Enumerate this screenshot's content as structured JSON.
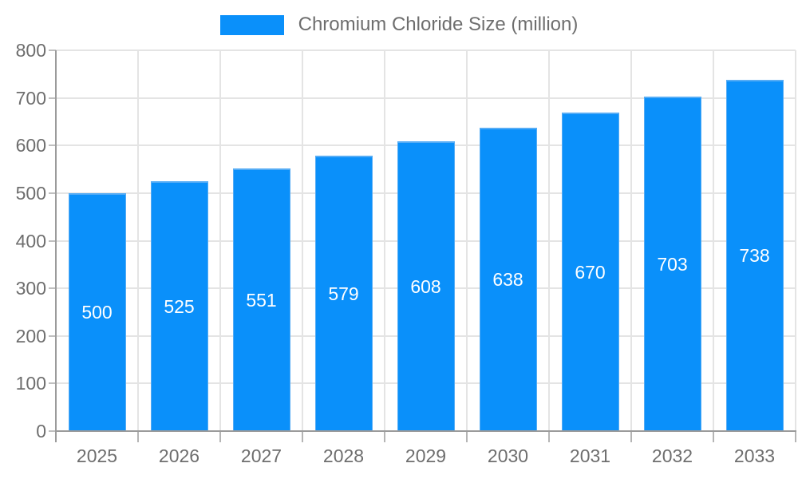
{
  "legend": {
    "label": "Chromium Chloride Size (million)"
  },
  "chart_data": {
    "type": "bar",
    "title": "Chromium Chloride Size (million)",
    "categories": [
      "2025",
      "2026",
      "2027",
      "2028",
      "2029",
      "2030",
      "2031",
      "2032",
      "2033"
    ],
    "values": [
      500,
      525,
      551,
      579,
      608,
      638,
      670,
      703,
      738
    ],
    "xlabel": "",
    "ylabel": "",
    "ylim": [
      0,
      800
    ],
    "ytick_step": 100,
    "grid": true,
    "legend_position": "top"
  },
  "colors": {
    "bar": "#0a90fa",
    "bar_border": "#55acf5",
    "axis": "#9b9b9b",
    "gridline": "#e4e4e4",
    "tick_text": "#6e6e6e",
    "bar_label_text": "#ffffff",
    "background": "#ffffff"
  }
}
